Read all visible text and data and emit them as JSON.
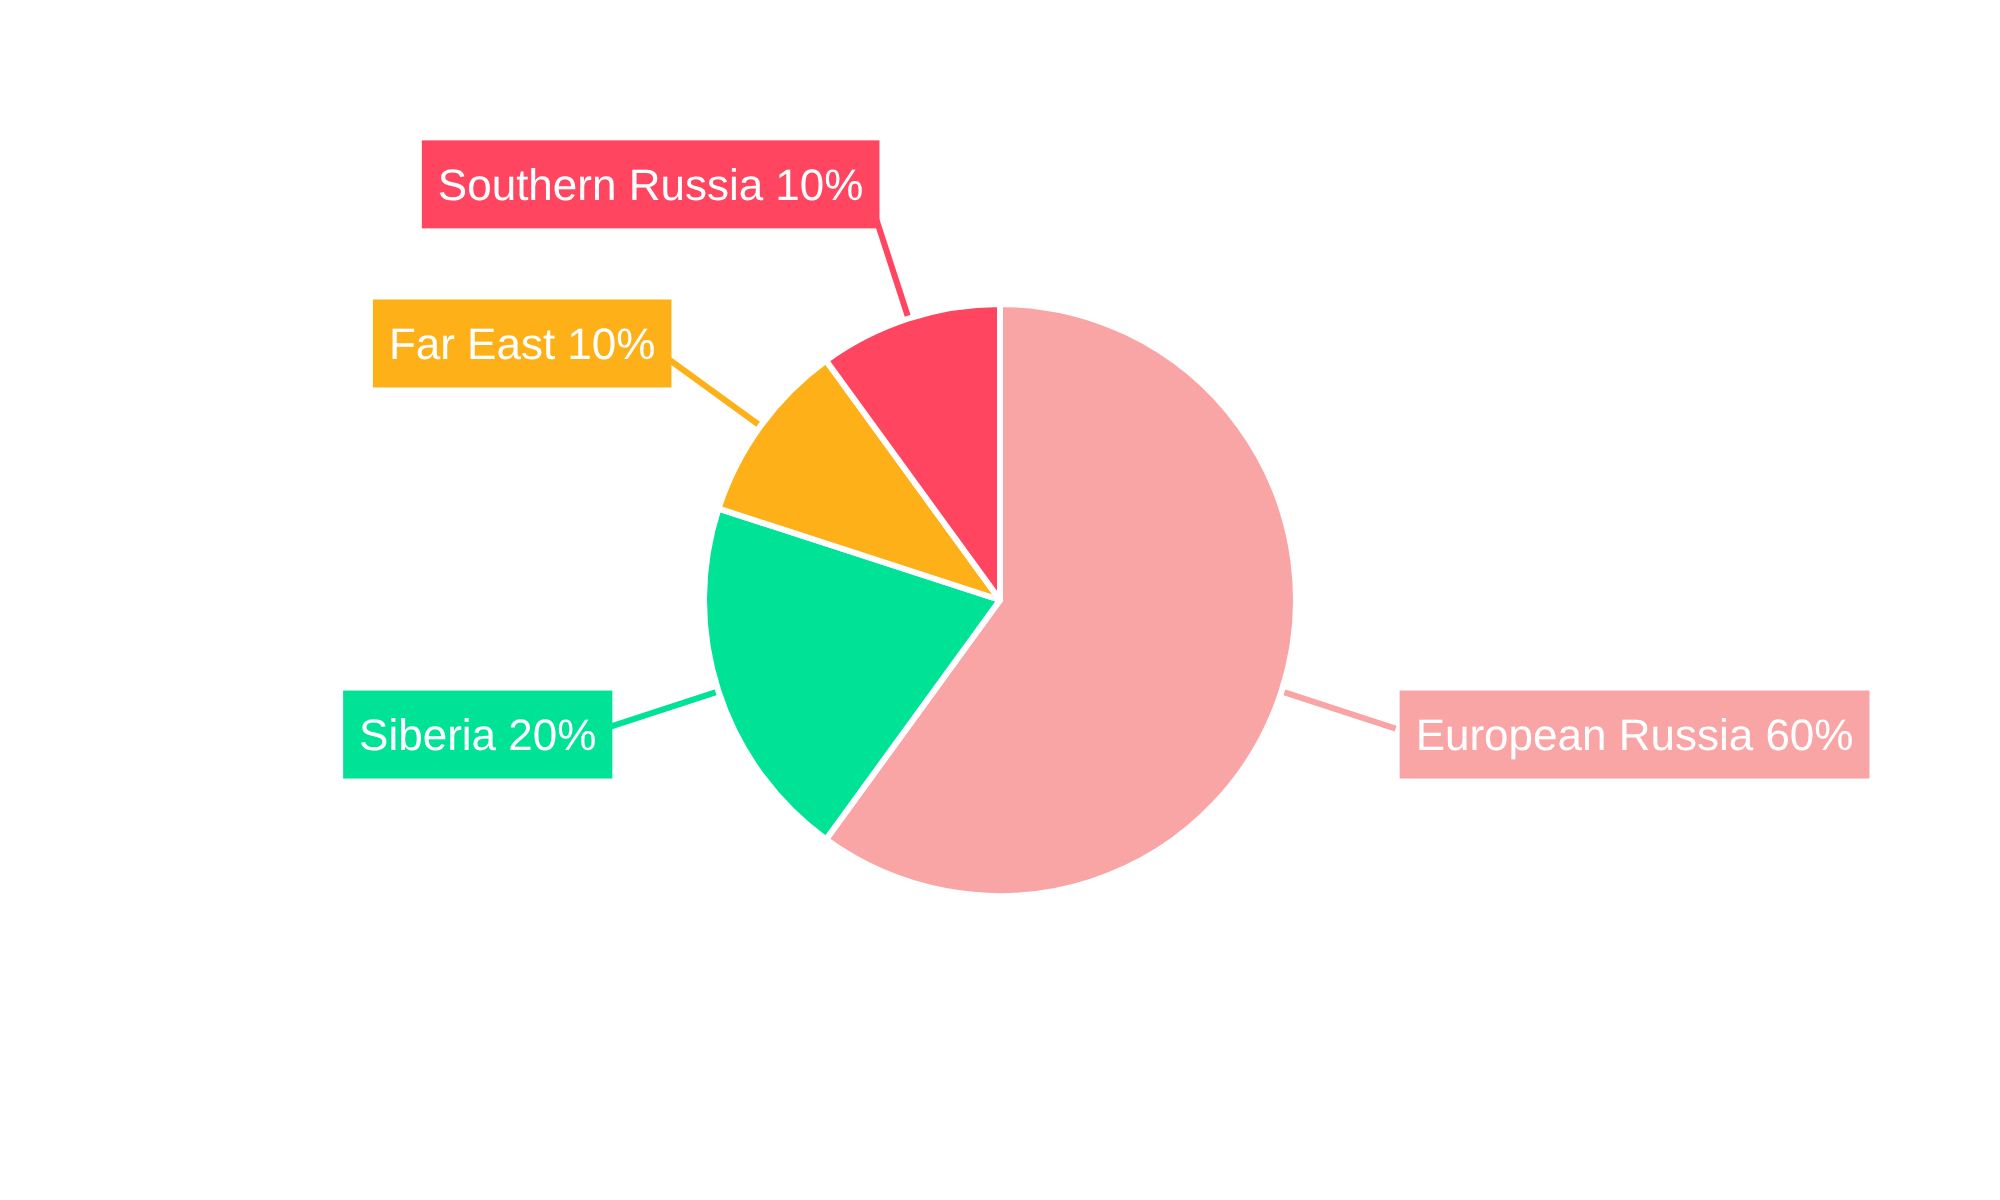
{
  "chart_data": {
    "type": "pie",
    "categories": [
      "European Russia",
      "Siberia",
      "Far East",
      "Southern Russia"
    ],
    "values": [
      60,
      20,
      10,
      10
    ],
    "colors": [
      "#f9a5a6",
      "#00e396",
      "#feb019",
      "#ff4560"
    ],
    "value_labels": [
      "60%",
      "20%",
      "10%",
      "10%"
    ]
  }
}
